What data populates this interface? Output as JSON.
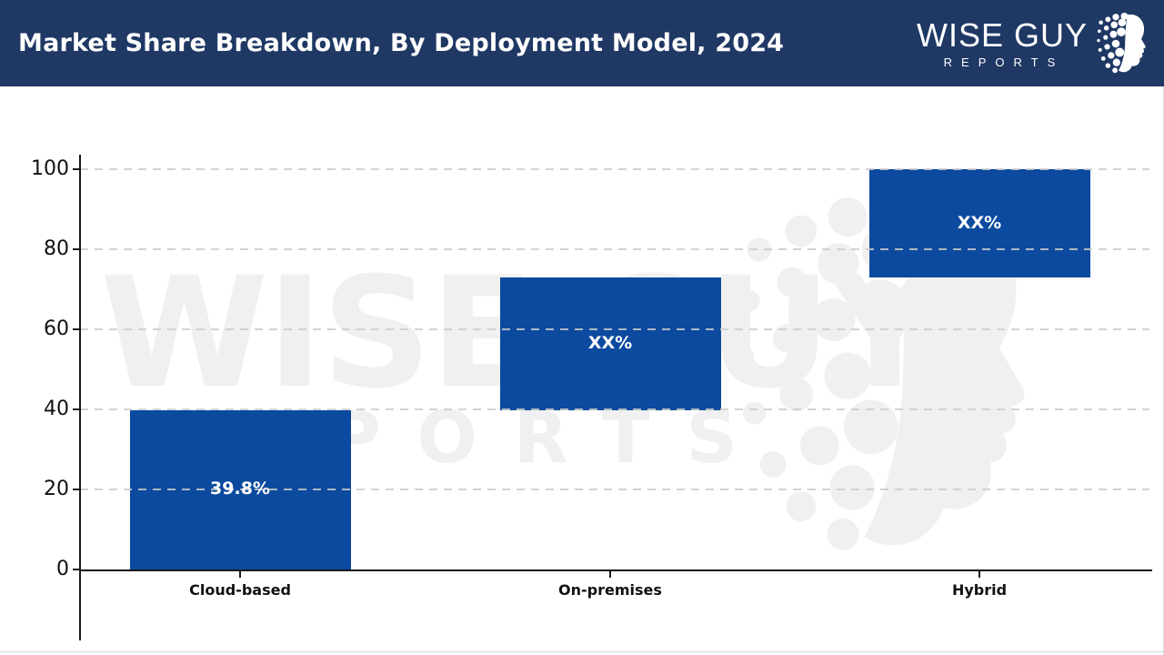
{
  "header": {
    "title": "Market Share Breakdown, By Deployment Model, 2024",
    "bg_color": "#1f3864",
    "logo": {
      "line1": "WISE GUY",
      "line2": "REPORTS"
    }
  },
  "watermark": {
    "line1": "WISE GUY",
    "line2": "REPORTS"
  },
  "chart_data": {
    "type": "bar",
    "variant": "floating-waterfall",
    "title": "Market Share Breakdown, By Deployment Model, 2024",
    "categories": [
      "Cloud-based",
      "On-premises",
      "Hybrid"
    ],
    "segments": [
      {
        "category": "Cloud-based",
        "start": 0,
        "end": 39.8,
        "label": "39.8%"
      },
      {
        "category": "On-premises",
        "start": 39.8,
        "end": 72.9,
        "label": "XX%"
      },
      {
        "category": "Hybrid",
        "start": 72.9,
        "end": 100,
        "label": "XX%"
      }
    ],
    "y_ticks": [
      0,
      20,
      40,
      60,
      80,
      100
    ],
    "ylim": [
      0,
      104
    ],
    "xlabel": "",
    "ylabel": "",
    "grid": "horizontal-dashed",
    "legend": "none",
    "bar_color": "#0b4a9f",
    "bar_label_color": "#ffffff",
    "axis_color": "#1a1a1a",
    "grid_color": "#d9d9d9"
  }
}
